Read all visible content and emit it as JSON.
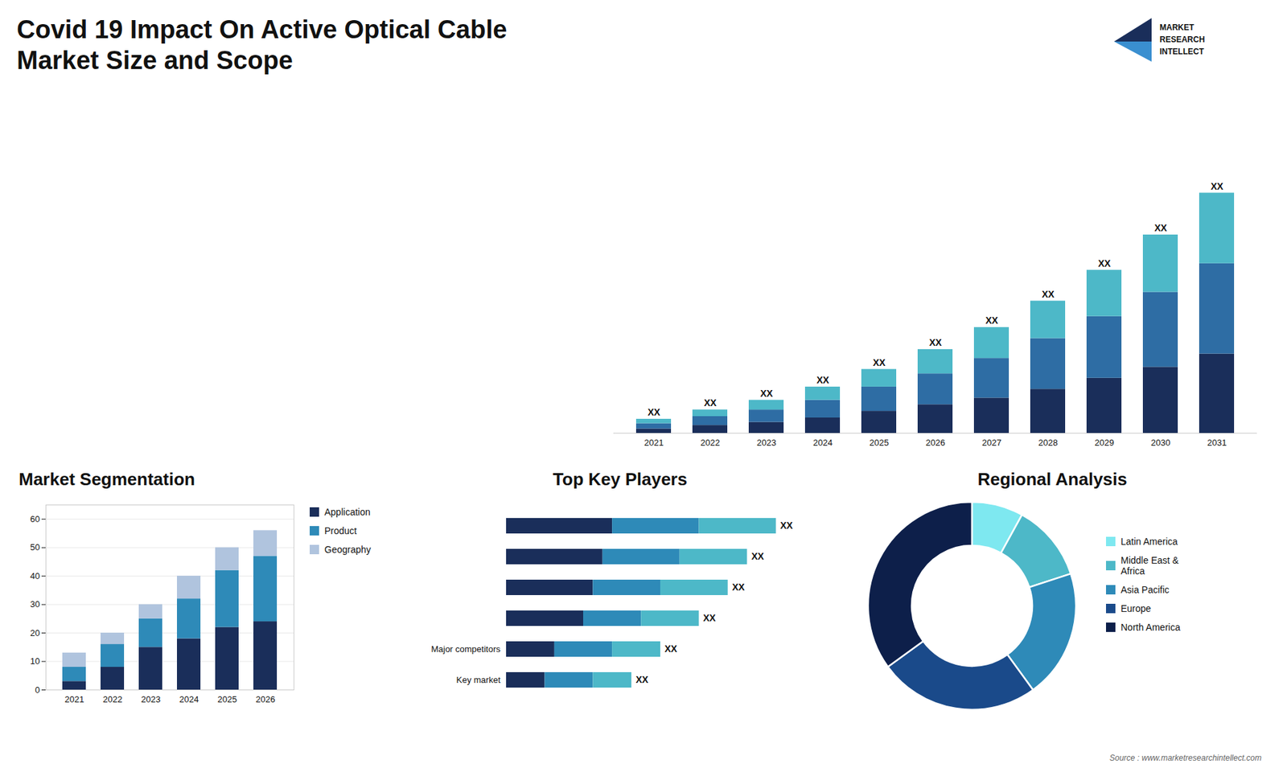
{
  "title": "Covid 19 Impact On Active Optical Cable Market Size and Scope",
  "annotations": [
    "MARKET",
    "RESEARCH",
    "INTELLECT",
    "Source : www.marketresearchintellect.com"
  ],
  "chart_data": [
    {
      "type": "bar",
      "stacked": true,
      "categories": [
        "2021",
        "2022",
        "2023",
        "2024",
        "2025",
        "2026",
        "2027",
        "2028",
        "2029",
        "2030",
        "2031"
      ],
      "series": [
        {
          "color": "#1a2e5a",
          "values": [
            1.0,
            1.8,
            2.5,
            3.5,
            5.0,
            6.5,
            8.0,
            10.0,
            12.5,
            15.0,
            18.0
          ]
        },
        {
          "color": "#2e6da4",
          "values": [
            1.2,
            2.0,
            2.8,
            4.0,
            5.5,
            7.0,
            9.0,
            11.5,
            14.0,
            17.0,
            20.5
          ]
        },
        {
          "color": "#4db8c8",
          "values": [
            1.0,
            1.5,
            2.2,
            3.0,
            4.0,
            5.5,
            7.0,
            8.5,
            10.5,
            13.0,
            16.0
          ]
        }
      ],
      "ylim": [
        0,
        70.85
      ],
      "tick_labels": "x",
      "grid": false,
      "value_labels": [
        "XX",
        "XX",
        "XX",
        "XX",
        "XX",
        "XX",
        "XX",
        "XX",
        "XX",
        "XX",
        "XX"
      ]
    },
    {
      "type": "bar",
      "stacked": true,
      "title": "Market Segmentation",
      "categories": [
        "2021",
        "2022",
        "2023",
        "2024",
        "2025",
        "2026"
      ],
      "series": [
        {
          "name": "Application",
          "color": "#1a2e5a",
          "values": [
            3,
            8,
            15,
            18,
            22,
            24
          ]
        },
        {
          "name": "Product",
          "color": "#2e8ab8",
          "values": [
            5,
            8,
            10,
            14,
            20,
            23
          ]
        },
        {
          "name": "Geography",
          "color": "#b0c4de",
          "values": [
            5,
            4,
            5,
            8,
            8,
            9
          ]
        }
      ],
      "ylim": [
        0,
        65
      ],
      "yticks": [
        0,
        10,
        20,
        30,
        40,
        50,
        60
      ],
      "grid": true,
      "legend": "right"
    },
    {
      "type": "bar",
      "stacked": true,
      "orientation": "horizontal",
      "title": "Top Key Players",
      "categories": [
        null,
        null,
        null,
        null,
        "Major competitors",
        "Key market"
      ],
      "series": [
        {
          "color": "#1a2e5a",
          "values": [
            5.5,
            5.0,
            4.5,
            4.0,
            2.5,
            2.0
          ]
        },
        {
          "color": "#2e8ab8",
          "values": [
            4.5,
            4.0,
            3.5,
            3.0,
            3.0,
            2.5
          ]
        },
        {
          "color": "#4db8c8",
          "values": [
            4.0,
            3.5,
            3.5,
            3.0,
            2.5,
            2.0
          ]
        }
      ],
      "xlim": [
        0,
        16
      ],
      "tick_labels": "y",
      "grid": false,
      "value_labels": [
        "XX",
        "XX",
        "XX",
        "XX",
        "XX",
        "XX"
      ]
    },
    {
      "type": "pie",
      "title": "Regional Analysis",
      "categories": [
        "Latin America",
        "Middle East &\nAfrica",
        "Asia Pacific",
        "Europe",
        "North America"
      ],
      "values": [
        8,
        12,
        20,
        25,
        35
      ],
      "colors": [
        "#7ee8f0",
        "#4db8c8",
        "#2e8ab8",
        "#1a4a8a",
        "#0d1f4a"
      ],
      "legend": "right"
    }
  ]
}
